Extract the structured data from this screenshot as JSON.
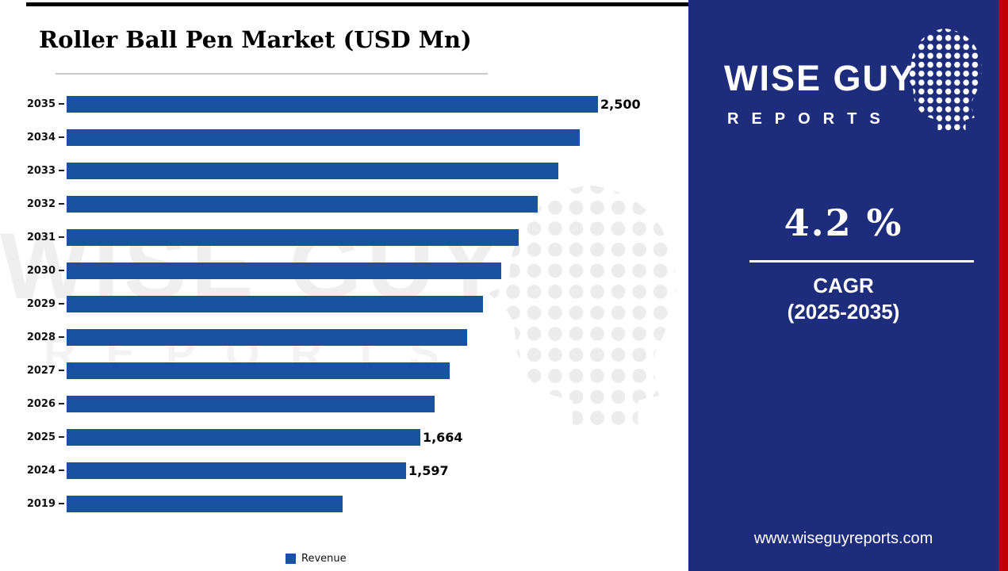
{
  "chart_data": {
    "type": "bar",
    "orientation": "horizontal",
    "title": "Roller Ball Pen Market (USD Mn)",
    "categories": [
      "2035",
      "2034",
      "2033",
      "2032",
      "2031",
      "2030",
      "2029",
      "2028",
      "2027",
      "2026",
      "2025",
      "2024",
      "2019"
    ],
    "values": [
      2500,
      2414,
      2313,
      2216,
      2127,
      2045,
      1959,
      1885,
      1803,
      1732,
      1664,
      1597,
      1300
    ],
    "value_labels": [
      "2,500",
      null,
      null,
      null,
      null,
      null,
      null,
      null,
      null,
      null,
      "1,664",
      "1,597",
      null
    ],
    "xlim": [
      0,
      2500
    ],
    "ylabel": "",
    "xlabel": "",
    "grid": false,
    "legend": [
      "Revenue"
    ],
    "legend_position": "bottom"
  },
  "colors": {
    "bar": "#1952a0",
    "panel_bg": "#1e2d7b",
    "stripe": "#c00000",
    "title_underline": "#c9c9c9"
  },
  "watermark": {
    "line1": "WISE GUY",
    "line2": "REPORTS"
  },
  "side_panel": {
    "logo_title": "WISE GUY",
    "logo_subtitle": "REPORTS",
    "cagr_value": "4.2 %",
    "cagr_line1": "CAGR",
    "cagr_line2": "(2025-2035)",
    "website": "www.wiseguyreports.com"
  }
}
